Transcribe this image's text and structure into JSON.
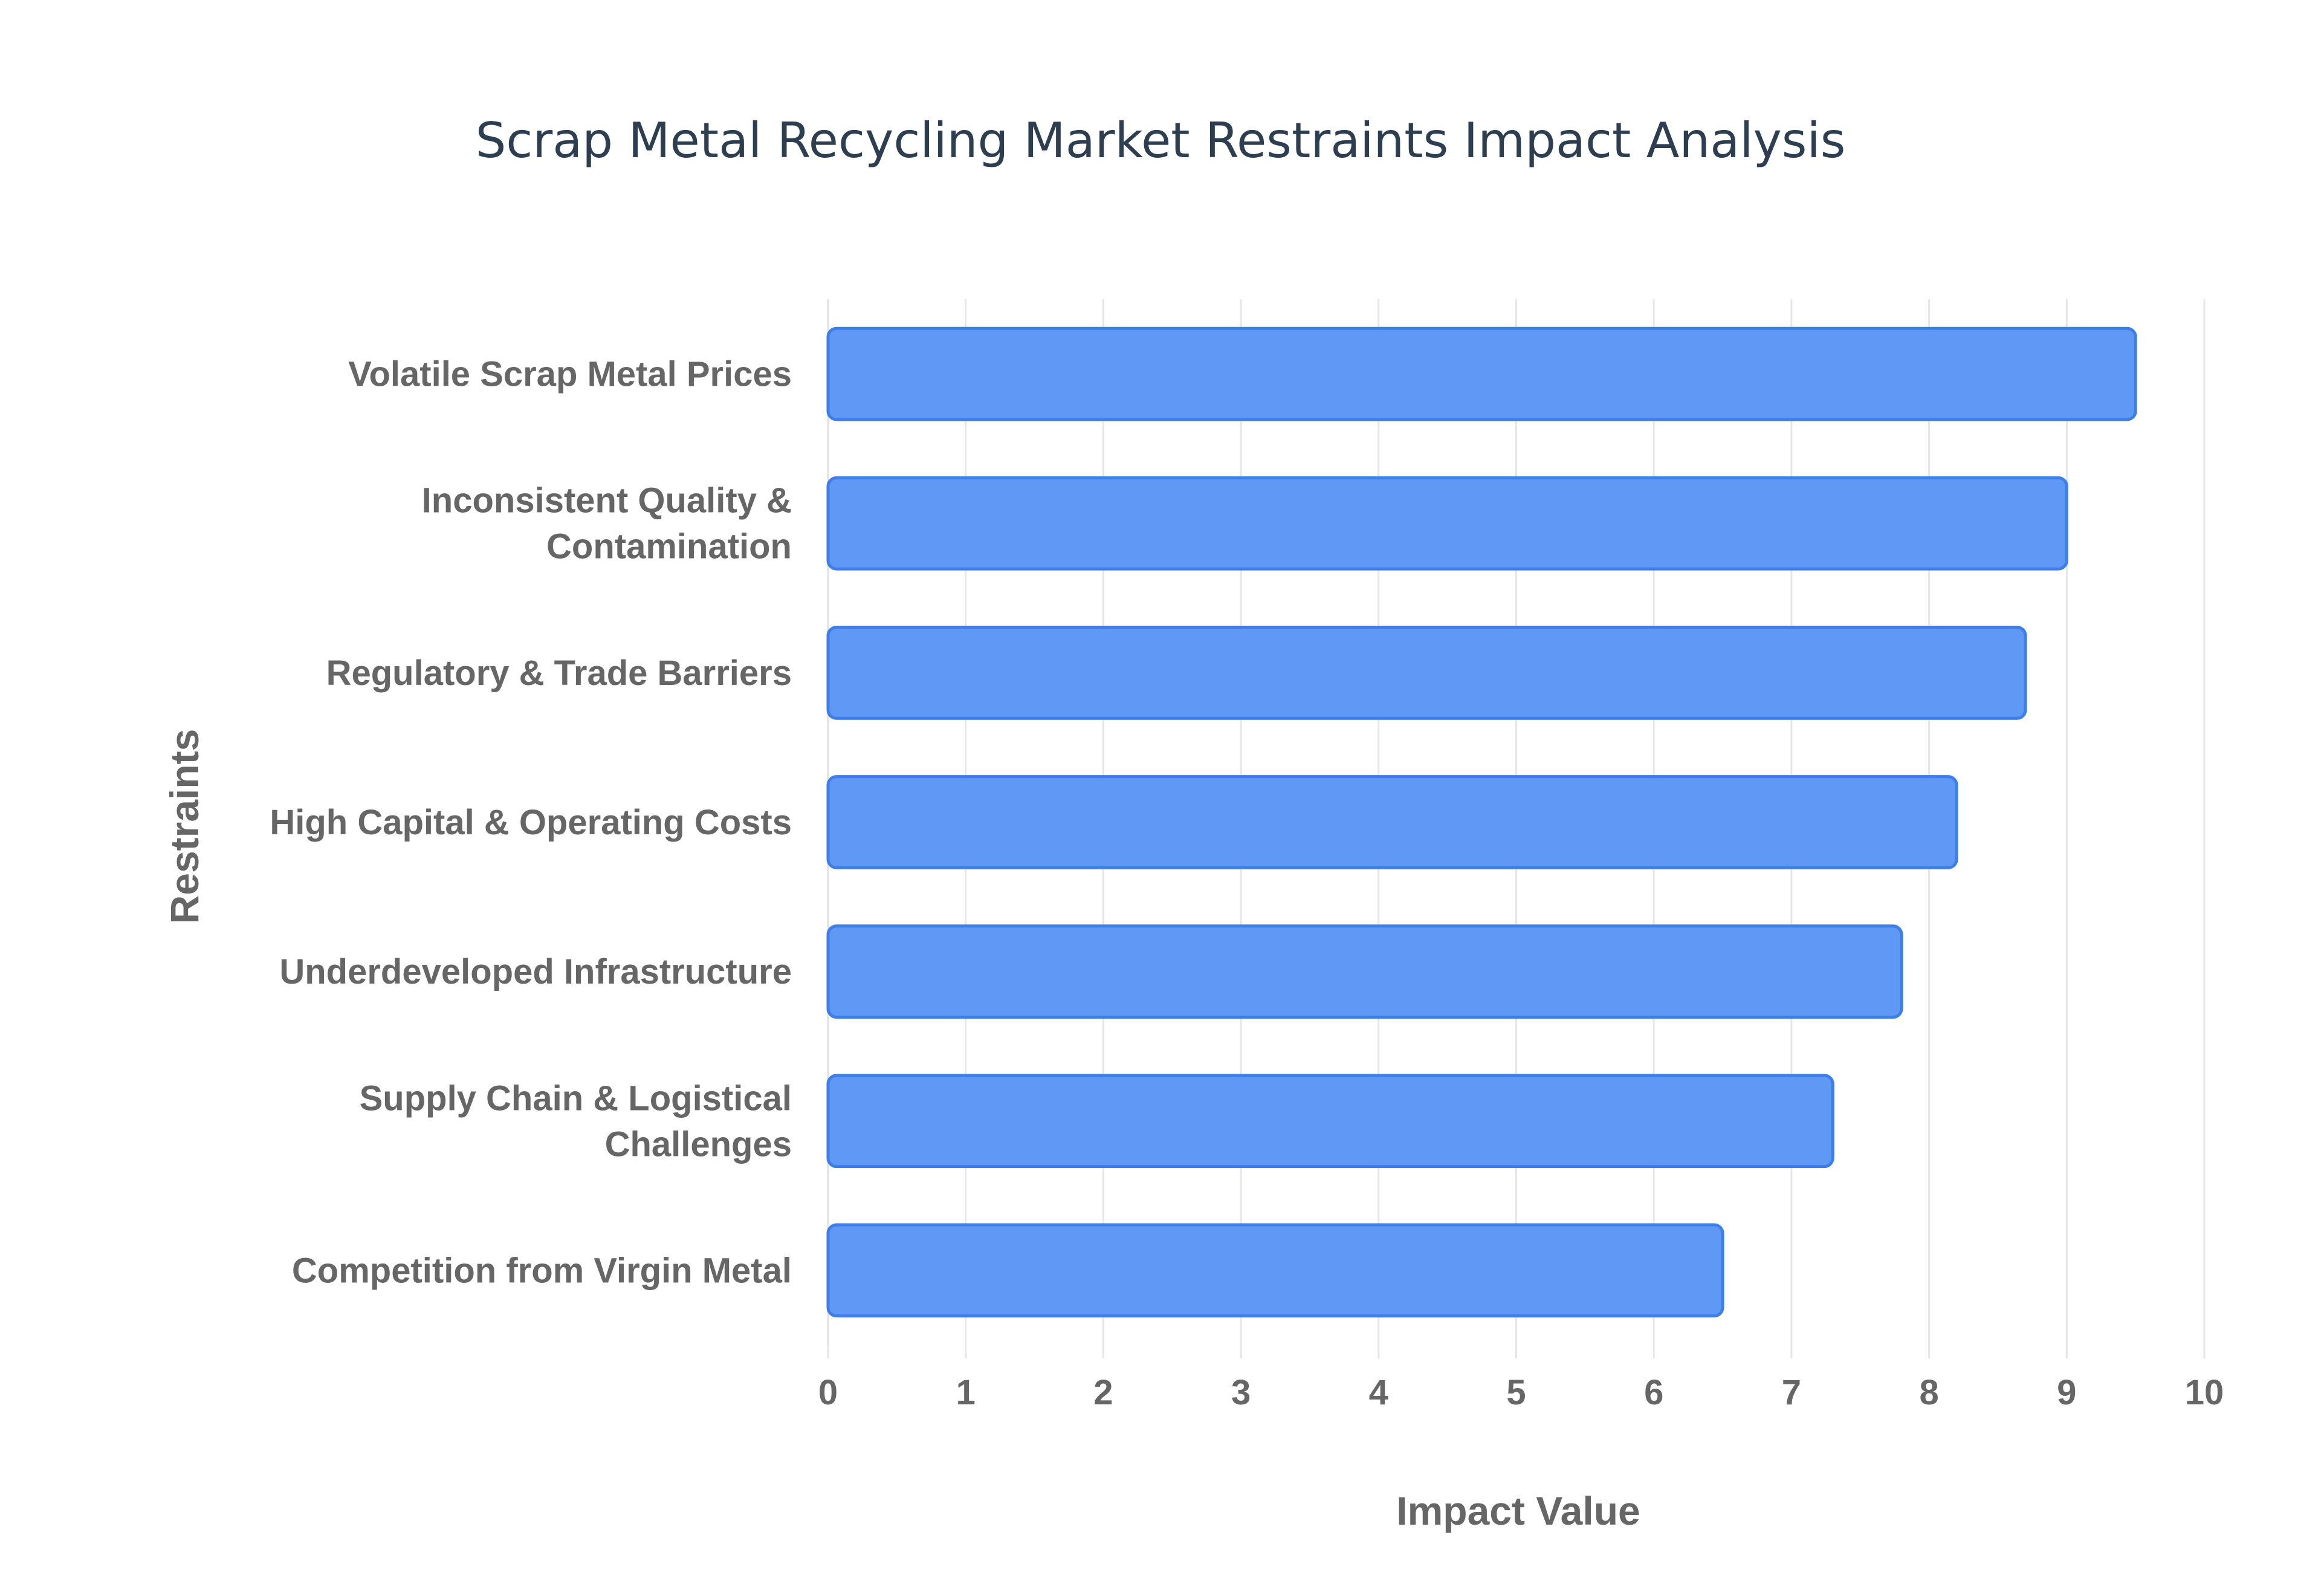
{
  "chart_data": {
    "type": "bar",
    "orientation": "horizontal",
    "title": "Scrap Metal Recycling Market Restraints Impact Analysis",
    "xlabel": "Impact Value",
    "ylabel": "Restraints",
    "categories": [
      [
        "Volatile Scrap Metal Prices"
      ],
      [
        "Inconsistent Quality &",
        "Contamination"
      ],
      [
        "Regulatory & Trade Barriers"
      ],
      [
        "High Capital & Operating Costs"
      ],
      [
        "Underdeveloped Infrastructure"
      ],
      [
        "Supply Chain & Logistical",
        "Challenges"
      ],
      [
        "Competition from Virgin Metal"
      ]
    ],
    "values": [
      9.5,
      9.0,
      8.7,
      8.2,
      7.8,
      7.3,
      6.5
    ],
    "xlim": [
      0,
      10
    ],
    "xticks": [
      "0",
      "1",
      "2",
      "3",
      "4",
      "5",
      "6",
      "7",
      "8",
      "9",
      "10"
    ],
    "grid": true,
    "legend": "none",
    "colors": {
      "bar_fill": "#6098f5",
      "bar_stroke": "#3d7ee8",
      "title": "#2c3e50",
      "labels": "#666666",
      "grid": "#e6e6e6"
    }
  }
}
